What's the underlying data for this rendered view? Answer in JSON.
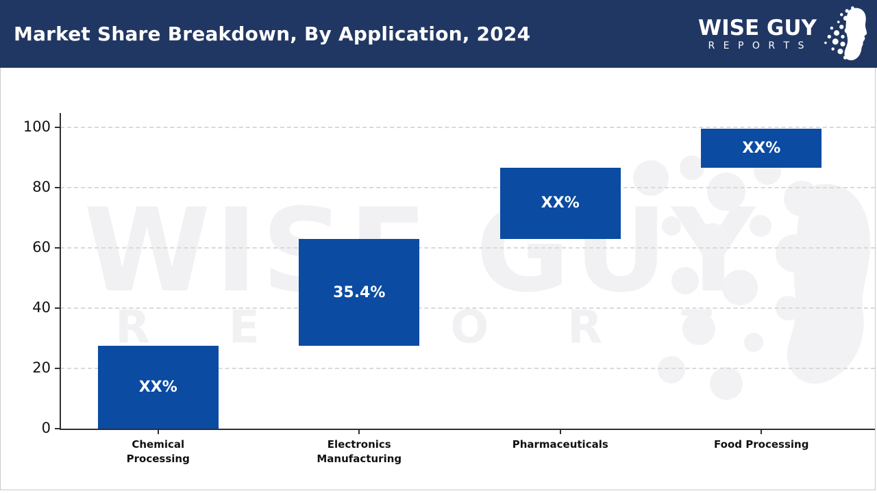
{
  "header": {
    "title": "Market Share Breakdown, By Application, 2024",
    "bg_color": "#213763",
    "logo": {
      "line1": "WISE GUY",
      "line2": "R E P O R T S"
    }
  },
  "watermark": {
    "line1": "WISE GUY",
    "line2": "R E P O R T S"
  },
  "chart_data": {
    "type": "bar",
    "subtype": "waterfall-floating-bars",
    "title": "Market Share Breakdown, By Application, 2024",
    "xlabel": "",
    "ylabel": "",
    "categories": [
      [
        "Chemical",
        "Processing"
      ],
      [
        "Electronics",
        "Manufacturing"
      ],
      [
        "Pharmaceuticals"
      ],
      [
        "Food Processing"
      ]
    ],
    "segments": [
      {
        "name": "Chemical Processing",
        "start": 0,
        "end": 27.5,
        "label": "XX%"
      },
      {
        "name": "Electronics Manufacturing",
        "start": 27.5,
        "end": 62.9,
        "label": "35.4%"
      },
      {
        "name": "Pharmaceuticals",
        "start": 62.9,
        "end": 86.7,
        "label": "XX%"
      },
      {
        "name": "Food Processing",
        "start": 86.7,
        "end": 99.6,
        "label": "XX%"
      }
    ],
    "yticks": [
      0,
      20,
      40,
      60,
      80,
      100
    ],
    "ylim": [
      0,
      104.8
    ],
    "grid": "horizontal-dashed",
    "legend": "none",
    "colors": {
      "bar": "#0b4ba1",
      "bar_label": "#ffffff",
      "grid": "#d9d9d9",
      "axis": "#2f2f2f",
      "header_bg": "#213763",
      "watermark": "#f1f1f4"
    }
  }
}
